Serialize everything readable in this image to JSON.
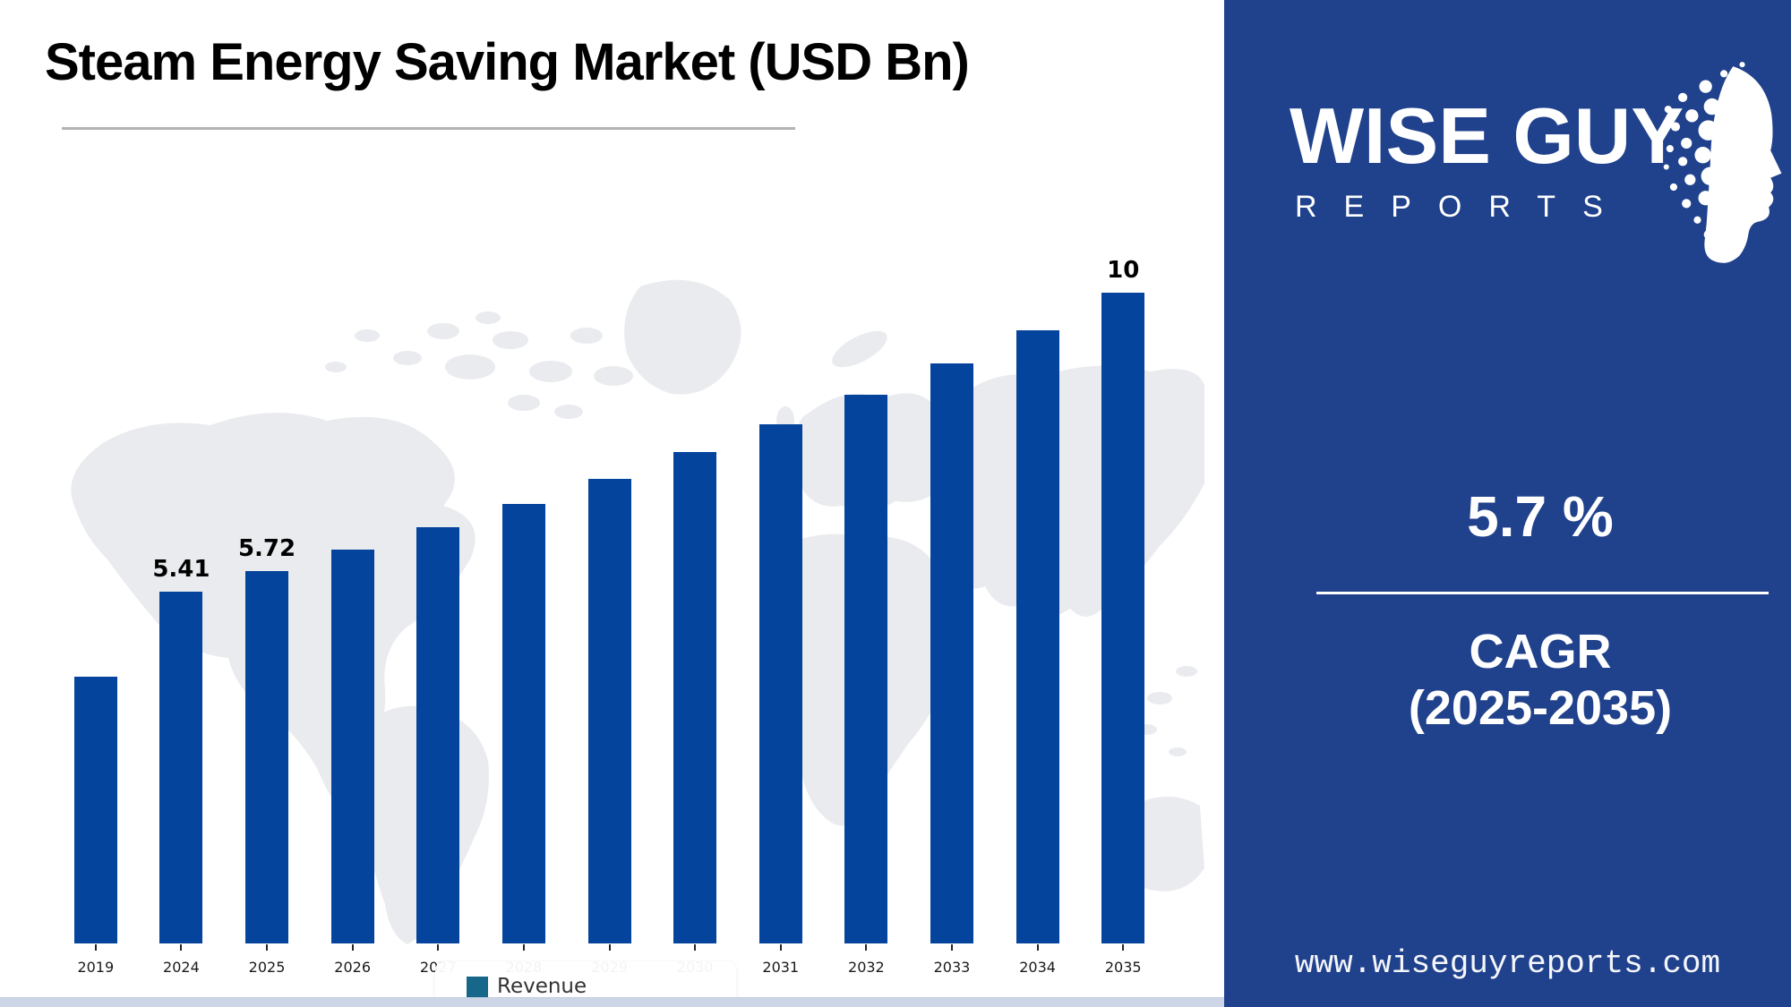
{
  "title": "Steam Energy Saving Market (USD Bn)",
  "chart_data": {
    "type": "bar",
    "title": "Steam Energy Saving Market (USD Bn)",
    "units": "USD Bn",
    "categories": [
      "2019",
      "2024",
      "2025",
      "2026",
      "2027",
      "2028",
      "2029",
      "2030",
      "2031",
      "2032",
      "2033",
      "2034",
      "2035"
    ],
    "values": [
      4.1,
      5.41,
      5.72,
      6.05,
      6.39,
      6.76,
      7.14,
      7.55,
      7.98,
      8.43,
      8.91,
      9.42,
      10
    ],
    "bar_value_labels": {
      "2024": "5.41",
      "2025": "5.72",
      "2035": "10"
    },
    "xlabel": "",
    "ylabel": "",
    "ylim": [
      0,
      10.8
    ],
    "grid": false,
    "legend": {
      "label": "Revenue",
      "position": "bottom-center"
    }
  },
  "sidebar": {
    "logo_line1": "WISE GUY",
    "logo_line2": "REPORTS",
    "cagr_value": "5.7 %",
    "cagr_label": "CAGR",
    "cagr_range": "(2025-2035)",
    "website": "www.wiseguyreports.com"
  },
  "colors": {
    "bar": "#05449c",
    "sidebar_background": "#20418c",
    "legend_swatch": "#17678a",
    "title_divider": "#b3b3b3",
    "bottom_strip": "#cdd6e6",
    "map_watermark": "#e9ebee"
  }
}
